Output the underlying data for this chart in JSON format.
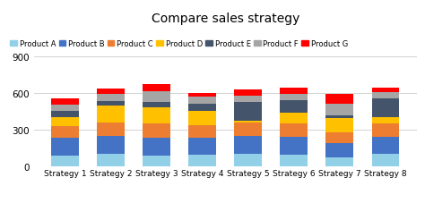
{
  "title": "Compare sales strategy",
  "categories": [
    "Strategy 1",
    "Strategy 2",
    "Strategy 3",
    "Strategy 4",
    "Strategy 5",
    "Strategy 6",
    "Strategy 7",
    "Strategy 8"
  ],
  "products": [
    "Product A",
    "Product B",
    "Product C",
    "Product D",
    "Product E",
    "Product F",
    "Product G"
  ],
  "colors": [
    "#92D0E8",
    "#4472C4",
    "#ED7D31",
    "#FFC000",
    "#44546A",
    "#A5A5A5",
    "#FF0000"
  ],
  "data": {
    "Product A": [
      90,
      100,
      90,
      95,
      100,
      95,
      75,
      100
    ],
    "Product B": [
      140,
      150,
      145,
      135,
      145,
      145,
      115,
      140
    ],
    "Product C": [
      100,
      110,
      115,
      105,
      110,
      110,
      90,
      110
    ],
    "Product D": [
      70,
      140,
      130,
      115,
      15,
      85,
      115,
      55
    ],
    "Product E": [
      55,
      30,
      45,
      65,
      155,
      105,
      20,
      150
    ],
    "Product F": [
      50,
      60,
      90,
      55,
      55,
      50,
      100,
      55
    ],
    "Product G": [
      50,
      45,
      60,
      30,
      45,
      50,
      80,
      35
    ]
  },
  "ylim": [
    0,
    900
  ],
  "yticks": [
    0,
    300,
    600,
    900
  ],
  "background_color": "#ffffff",
  "title_fontsize": 10,
  "legend_fontsize": 6.5
}
